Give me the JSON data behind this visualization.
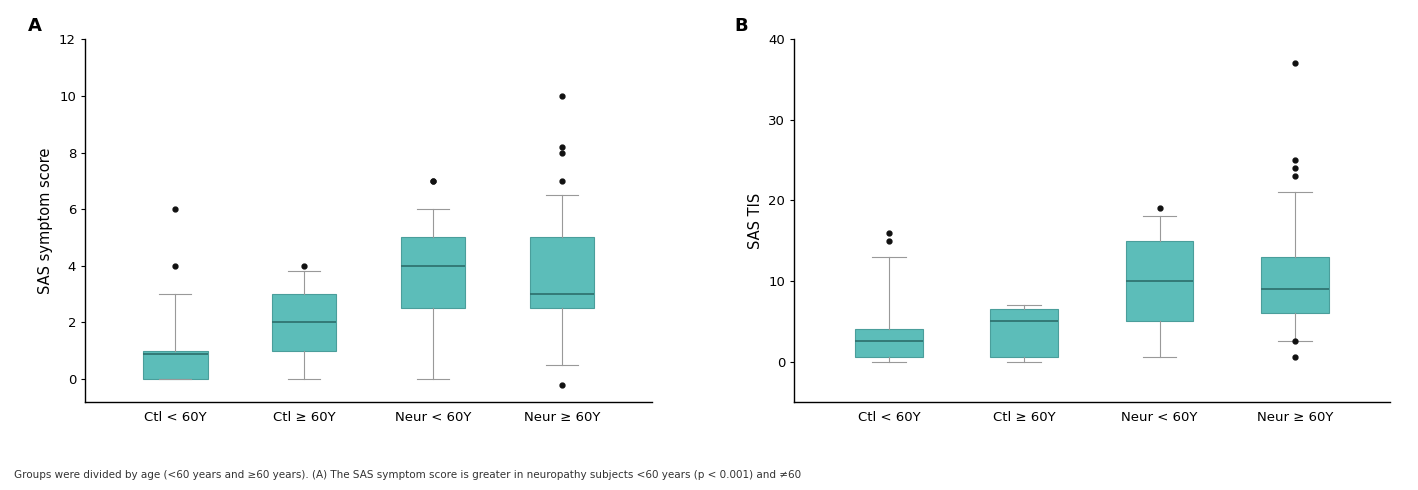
{
  "panel_A": {
    "label": "A",
    "ylabel": "SAS symptom score",
    "ylim": [
      -0.8,
      12
    ],
    "yticks": [
      0,
      2,
      4,
      6,
      8,
      10,
      12
    ],
    "categories": [
      "Ctl < 60Y",
      "Ctl ≥ 60Y",
      "Neur < 60Y",
      "Neur ≥ 60Y"
    ],
    "boxes": [
      {
        "q1": 0.0,
        "median": 0.9,
        "q3": 1.0,
        "whislo": 0.0,
        "whishi": 3.0,
        "fliers": [
          6.0,
          4.0
        ]
      },
      {
        "q1": 1.0,
        "median": 2.0,
        "q3": 3.0,
        "whislo": 0.0,
        "whishi": 3.8,
        "fliers": [
          4.0
        ]
      },
      {
        "q1": 2.5,
        "median": 4.0,
        "q3": 5.0,
        "whislo": 0.0,
        "whishi": 6.0,
        "fliers": [
          7.0,
          7.0
        ]
      },
      {
        "q1": 2.5,
        "median": 3.0,
        "q3": 5.0,
        "whislo": 0.5,
        "whishi": 6.5,
        "fliers": [
          10.0,
          8.2,
          8.0,
          7.0,
          -0.2
        ]
      }
    ]
  },
  "panel_B": {
    "label": "B",
    "ylabel": "SAS TIS",
    "ylim": [
      -5,
      40
    ],
    "yticks": [
      0,
      10,
      20,
      30,
      40
    ],
    "categories": [
      "Ctl < 60Y",
      "Ctl ≥ 60Y",
      "Neur < 60Y",
      "Neur ≥ 60Y"
    ],
    "boxes": [
      {
        "q1": 0.5,
        "median": 2.5,
        "q3": 4.0,
        "whislo": 0.0,
        "whishi": 13.0,
        "fliers": [
          15.0,
          16.0
        ]
      },
      {
        "q1": 0.5,
        "median": 5.0,
        "q3": 6.5,
        "whislo": 0.0,
        "whishi": 7.0,
        "fliers": []
      },
      {
        "q1": 5.0,
        "median": 10.0,
        "q3": 15.0,
        "whislo": 0.5,
        "whishi": 18.0,
        "fliers": [
          19.0
        ]
      },
      {
        "q1": 6.0,
        "median": 9.0,
        "q3": 13.0,
        "whislo": 2.5,
        "whishi": 21.0,
        "fliers": [
          37.0,
          25.0,
          24.0,
          23.0,
          2.5,
          0.5
        ]
      }
    ]
  },
  "box_color": "#5cbdb9",
  "box_edge_color": "#4a9e9b",
  "median_color": "#2d6e6b",
  "whisker_color": "#999999",
  "cap_color": "#999999",
  "flier_color": "#111111",
  "caption": "Groups were divided by age (<60 years and ≥60 years). (A) The SAS symptom score is greater in neuropathy subjects <60 years (p < 0.001) and ≠60",
  "background_color": "#ffffff"
}
